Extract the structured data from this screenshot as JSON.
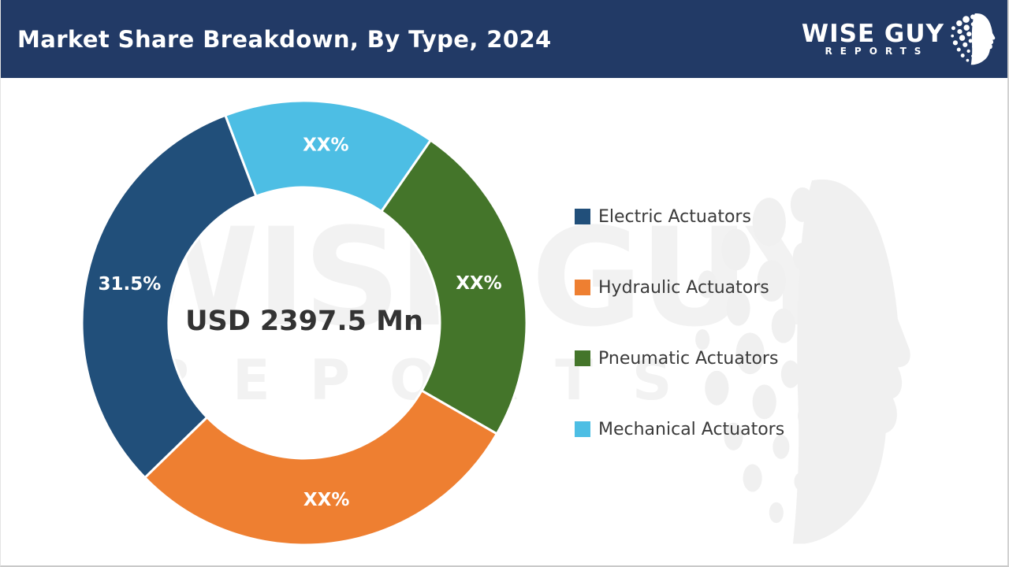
{
  "header": {
    "title": "Market Share Breakdown, By Type, 2024",
    "bg_color": "#223A66",
    "logo": {
      "line1": "WISE GUY",
      "line2": "REPORTS"
    }
  },
  "watermark": {
    "line1": "WISE GUY",
    "line2": "REPORTS"
  },
  "chart_data": {
    "type": "pie",
    "subtype": "donut",
    "title": "Market Share Breakdown, By Type, 2024",
    "center_label": "USD 2397.5 Mn",
    "start_angle_deg": 110.8,
    "direction": "counterclockwise",
    "legend_position": "right",
    "segments": [
      {
        "name": "Electric Actuators",
        "value_pct": 31.5,
        "label": "31.5%",
        "color": "#214F7A"
      },
      {
        "name": "Hydraulic Actuators",
        "value_pct": 29.4,
        "label": "XX%",
        "color": "#EE7F31"
      },
      {
        "name": "Pneumatic Actuators",
        "value_pct": 23.7,
        "label": "XX%",
        "color": "#44752A"
      },
      {
        "name": "Mechanical Actuators",
        "value_pct": 15.4,
        "label": "XX%",
        "color": "#4DBEE4"
      }
    ]
  }
}
